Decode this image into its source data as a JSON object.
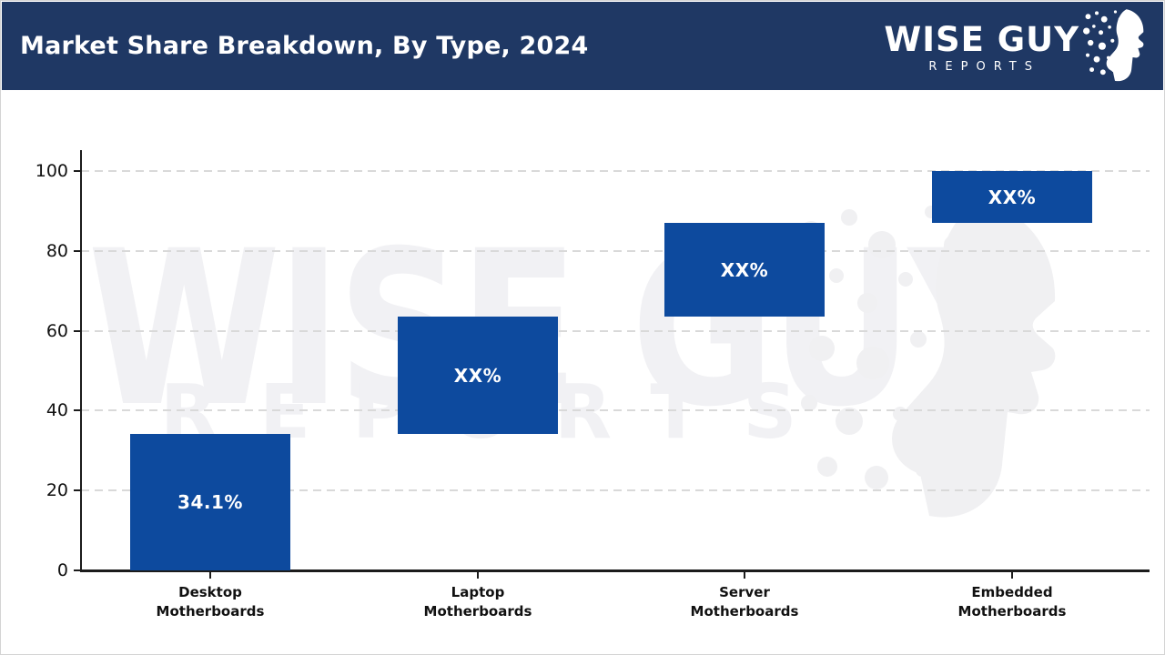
{
  "header": {
    "title": "Market Share Breakdown, By Type, 2024",
    "bg_color": "#1f3864",
    "logo": {
      "line1": "WISE GUY",
      "line2": "REPORTS"
    }
  },
  "watermark": {
    "line1": "WISE GUY",
    "line2": "REPORTS"
  },
  "chart_data": {
    "type": "bar",
    "subtype": "waterfall-floating-bars",
    "title": "Market Share Breakdown, By Type, 2024",
    "categories": [
      "Desktop Motherboards",
      "Laptop Motherboards",
      "Server Motherboards",
      "Embedded Motherboards"
    ],
    "category_lines": [
      [
        "Desktop",
        "Motherboards"
      ],
      [
        "Laptop",
        "Motherboards"
      ],
      [
        "Server",
        "Motherboards"
      ],
      [
        "Embedded",
        "Motherboards"
      ]
    ],
    "segments": [
      {
        "category": "Desktop Motherboards",
        "start": 0,
        "end": 34.1,
        "label": "34.1%"
      },
      {
        "category": "Laptop Motherboards",
        "start": 34.1,
        "end": 63.5,
        "label": "XX%"
      },
      {
        "category": "Server Motherboards",
        "start": 63.5,
        "end": 87.0,
        "label": "XX%"
      },
      {
        "category": "Embedded Motherboards",
        "start": 87.0,
        "end": 100.0,
        "label": "XX%"
      }
    ],
    "ylim": [
      0,
      100
    ],
    "yticks": [
      0,
      20,
      40,
      60,
      80,
      100
    ],
    "grid": "horizontal-dashed",
    "legend": "none",
    "bar_color": "#0d4a9e",
    "bar_label_color": "#ffffff",
    "axis_color": "#1c1c1c",
    "gridline_color": "#d9d9d9"
  }
}
